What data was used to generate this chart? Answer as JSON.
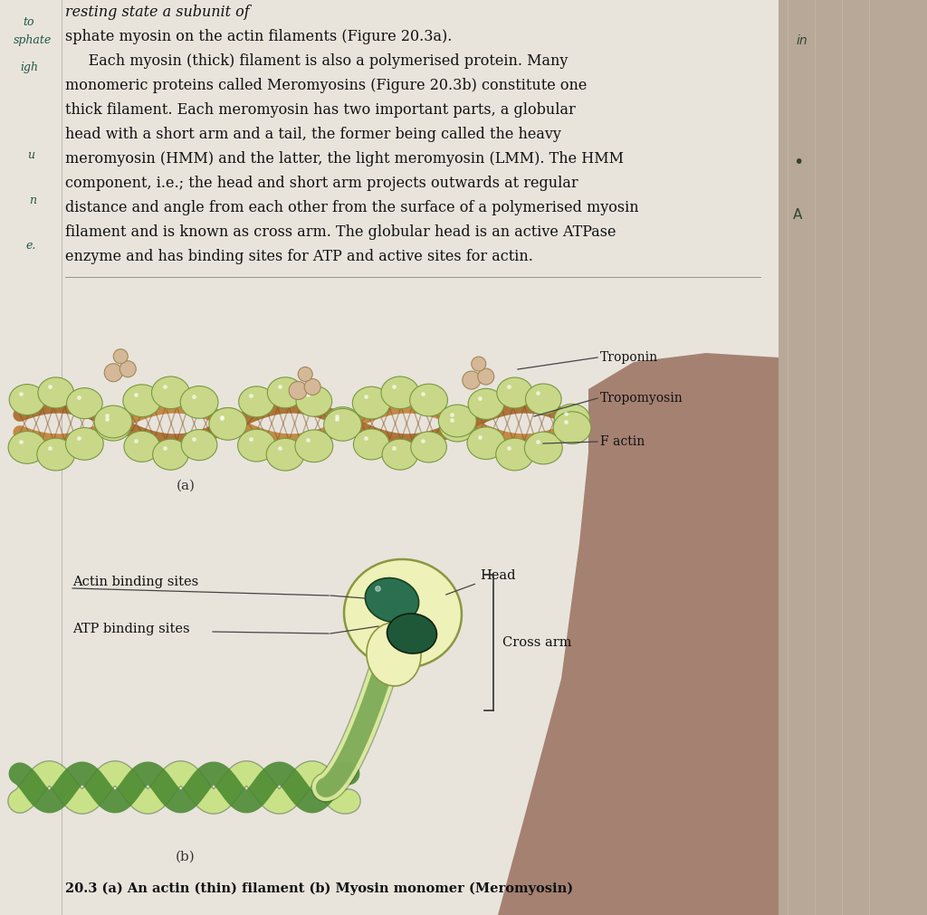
{
  "bg_color": "#d0cbc3",
  "paper_color": "#e8e4dc",
  "right_panel_color": "#b8a898",
  "text_color": "#111111",
  "caption": "20.3 (a) An actin (thin) filament (b) Myosin monomer (Meromyosin)",
  "label_a": "(a)",
  "label_b": "(b)",
  "actin_bead_color": "#c8d888",
  "actin_bead_edge": "#7a9840",
  "tropomyosin_color": "#b87838",
  "troponin_color": "#d4b898",
  "troponin_edge": "#a08858",
  "myosin_head_outer": "#eef2b8",
  "myosin_head_inner": "#2a7050",
  "myosin_head_inner2": "#1e5838",
  "myosin_tail_light": "#d0e888",
  "myosin_tail_dark": "#4a8830",
  "myosin_neck_color": "#e0eea0",
  "para_lines": [
    "resting state a subunit of",
    "sphate myosin on the actin filaments (Figure 20.3a).",
    "     Each myosin (thick) filament is also a polymerised protein. Many",
    "monomeric proteins called Meromyosins (Figure 20.3b) constitute one",
    "thick filament. Each meromyosin has two important parts, a globular",
    "head with a short arm and a tail, the former being called the heavy",
    "meromyosin (HMM) and the latter, the light meromyosin (LMM). The HMM",
    "component, i.e.; the head and short arm projects outwards at regular",
    "distance and angle from each other from the surface of a polymerised myosin",
    "filament and is known as cross arm. The globular head is an active ATPase",
    "enzyme and has binding sites for ATP and active sites for actin."
  ],
  "margin_notes": [
    "to",
    "sphate",
    "igh",
    "u",
    "n",
    "e."
  ],
  "right_notes": [
    "in",
    "•",
    "A"
  ]
}
